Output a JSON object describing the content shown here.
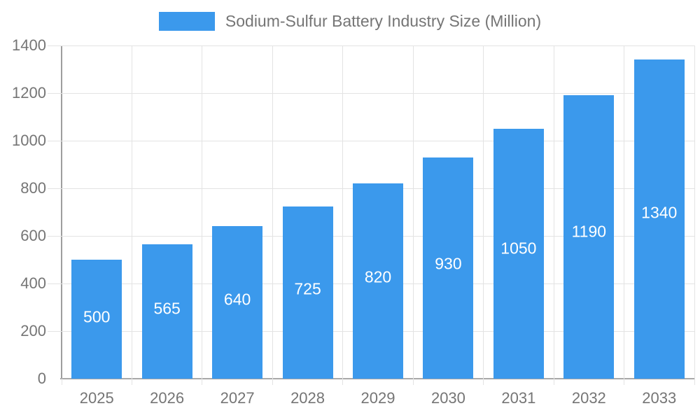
{
  "legend": {
    "label": "Sodium-Sulfur Battery Industry Size (Million)",
    "swatch_color": "#3b99ec"
  },
  "chart_data": {
    "type": "bar",
    "title": "Sodium-Sulfur Battery Industry Size (Million)",
    "categories": [
      "2025",
      "2026",
      "2027",
      "2028",
      "2029",
      "2030",
      "2031",
      "2032",
      "2033"
    ],
    "values": [
      500,
      565,
      640,
      725,
      820,
      930,
      1050,
      1190,
      1340
    ],
    "bar_labels": [
      "500",
      "565",
      "640",
      "725",
      "820",
      "930",
      "1050",
      "1190",
      "1340"
    ],
    "xlabel": "",
    "ylabel": "",
    "ylim": [
      0,
      1400
    ],
    "yticks": [
      0,
      200,
      400,
      600,
      800,
      1000,
      1200,
      1400
    ],
    "grid": true,
    "legend_position": "top-center",
    "colors": {
      "bar": "#3b99ec",
      "bar_label_text": "#ffffff",
      "axis_line": "#9e9e9e",
      "gridline": "#e3e3e3",
      "tick_label": "#757575",
      "background": "#ffffff"
    }
  }
}
